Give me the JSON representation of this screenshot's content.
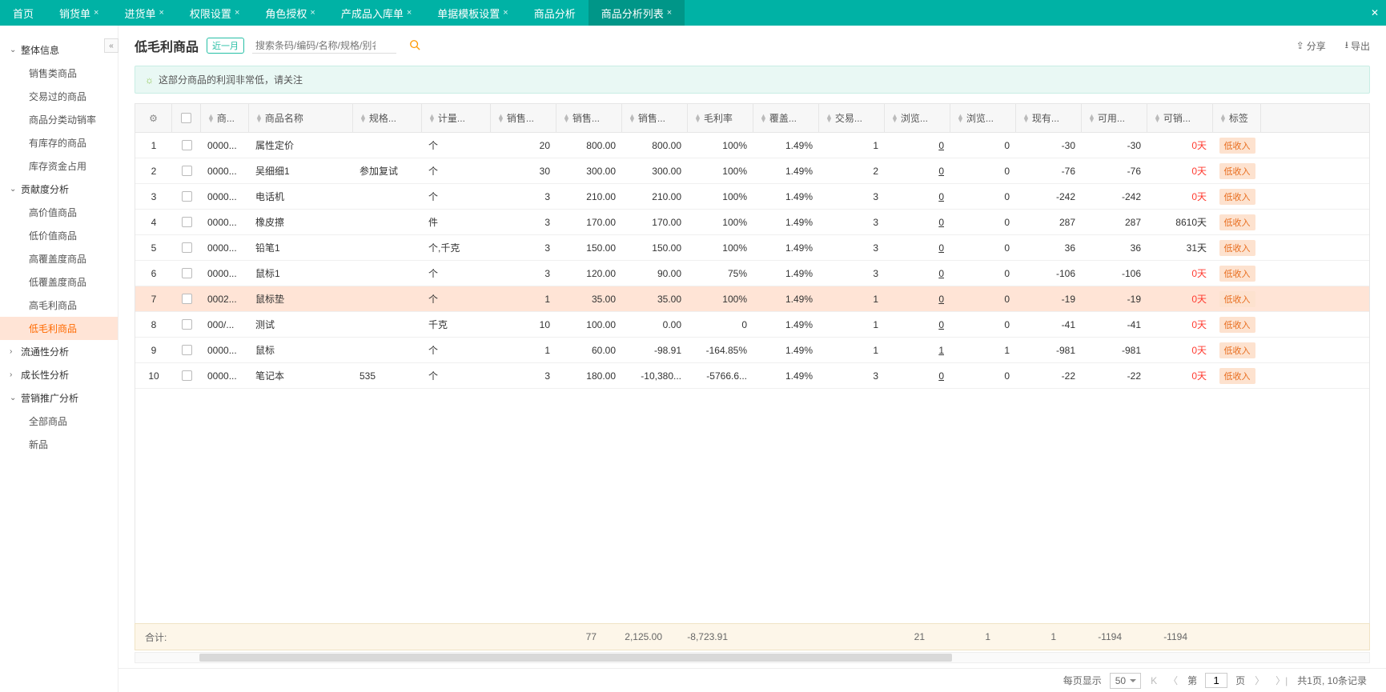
{
  "colors": {
    "brand": "#00b2a5",
    "brandDark": "#009688",
    "highlightRow": "#ffe4d6",
    "noticeBg": "#e9f8f4",
    "summaryBg": "#fdf6e9",
    "danger": "#ff3b30",
    "tagBg": "#fde2cf",
    "tagText": "#e86d1e"
  },
  "tabs": {
    "items": [
      {
        "label": "首页",
        "closable": false
      },
      {
        "label": "销货单",
        "closable": true
      },
      {
        "label": "进货单",
        "closable": true
      },
      {
        "label": "权限设置",
        "closable": true
      },
      {
        "label": "角色授权",
        "closable": true
      },
      {
        "label": "产成品入库单",
        "closable": true
      },
      {
        "label": "单据模板设置",
        "closable": true
      },
      {
        "label": "商品分析",
        "closable": false
      },
      {
        "label": "商品分析列表",
        "closable": true
      }
    ],
    "activeIndex": 8
  },
  "sidebar": {
    "groups": [
      {
        "label": "整体信息",
        "expanded": true,
        "items": [
          "销售类商品",
          "交易过的商品",
          "商品分类动销率",
          "有库存的商品",
          "库存资金占用"
        ]
      },
      {
        "label": "贡献度分析",
        "expanded": true,
        "items": [
          "高价值商品",
          "低价值商品",
          "高覆盖度商品",
          "低覆盖度商品",
          "高毛利商品",
          "低毛利商品"
        ],
        "activeItem": 5
      },
      {
        "label": "流通性分析",
        "expanded": false,
        "items": []
      },
      {
        "label": "成长性分析",
        "expanded": false,
        "items": []
      },
      {
        "label": "营销推广分析",
        "expanded": true,
        "items": [
          "全部商品",
          "新品"
        ]
      }
    ]
  },
  "header": {
    "title": "低毛利商品",
    "period": "近一月",
    "searchPlaceholder": "搜索条码/编码/名称/规格/别名",
    "share": "分享",
    "export": "导出"
  },
  "notice": {
    "text": "这部分商品的利润非常低，请关注"
  },
  "table": {
    "columns": [
      "商...",
      "商品名称",
      "规格...",
      "计量...",
      "销售...",
      "销售...",
      "销售...",
      "毛利率",
      "覆盖...",
      "交易...",
      "浏览...",
      "浏览...",
      "现有...",
      "可用...",
      "可销...",
      "标签"
    ],
    "rows": [
      {
        "n": 1,
        "code": "0000...",
        "name": "属性定价",
        "spec": "",
        "unit": "个",
        "q": "20",
        "amt1": "800.00",
        "amt2": "800.00",
        "gm": "100%",
        "cov": "1.49%",
        "tx": "1",
        "v1": "0",
        "v2": "0",
        "stk": "-30",
        "avl": "-30",
        "days": "0天",
        "daysRed": true,
        "tag": "低收入"
      },
      {
        "n": 2,
        "code": "0000...",
        "name": "吴细细1",
        "spec": "参加复试",
        "unit": "个",
        "q": "30",
        "amt1": "300.00",
        "amt2": "300.00",
        "gm": "100%",
        "cov": "1.49%",
        "tx": "2",
        "v1": "0",
        "v2": "0",
        "stk": "-76",
        "avl": "-76",
        "days": "0天",
        "daysRed": true,
        "tag": "低收入"
      },
      {
        "n": 3,
        "code": "0000...",
        "name": "电话机",
        "spec": "",
        "unit": "个",
        "q": "3",
        "amt1": "210.00",
        "amt2": "210.00",
        "gm": "100%",
        "cov": "1.49%",
        "tx": "3",
        "v1": "0",
        "v2": "0",
        "stk": "-242",
        "avl": "-242",
        "days": "0天",
        "daysRed": true,
        "tag": "低收入"
      },
      {
        "n": 4,
        "code": "0000...",
        "name": "橡皮擦",
        "spec": "",
        "unit": "件",
        "q": "3",
        "amt1": "170.00",
        "amt2": "170.00",
        "gm": "100%",
        "cov": "1.49%",
        "tx": "3",
        "v1": "0",
        "v2": "0",
        "stk": "287",
        "avl": "287",
        "days": "8610天",
        "daysRed": false,
        "tag": "低收入"
      },
      {
        "n": 5,
        "code": "0000...",
        "name": "铅笔1",
        "spec": "",
        "unit": "个,千克",
        "q": "3",
        "amt1": "150.00",
        "amt2": "150.00",
        "gm": "100%",
        "cov": "1.49%",
        "tx": "3",
        "v1": "0",
        "v2": "0",
        "stk": "36",
        "avl": "36",
        "days": "31天",
        "daysRed": false,
        "tag": "低收入"
      },
      {
        "n": 6,
        "code": "0000...",
        "name": "鼠标1",
        "spec": "",
        "unit": "个",
        "q": "3",
        "amt1": "120.00",
        "amt2": "90.00",
        "gm": "75%",
        "cov": "1.49%",
        "tx": "3",
        "v1": "0",
        "v2": "0",
        "stk": "-106",
        "avl": "-106",
        "days": "0天",
        "daysRed": true,
        "tag": "低收入"
      },
      {
        "n": 7,
        "code": "0002...",
        "name": "鼠标垫",
        "spec": "",
        "unit": "个",
        "q": "1",
        "amt1": "35.00",
        "amt2": "35.00",
        "gm": "100%",
        "cov": "1.49%",
        "tx": "1",
        "v1": "0",
        "v2": "0",
        "stk": "-19",
        "avl": "-19",
        "days": "0天",
        "daysRed": true,
        "tag": "低收入",
        "highlight": true
      },
      {
        "n": 8,
        "code": "000/...",
        "name": "测试",
        "spec": "",
        "unit": "千克",
        "q": "10",
        "amt1": "100.00",
        "amt2": "0.00",
        "gm": "0",
        "cov": "1.49%",
        "tx": "1",
        "v1": "0",
        "v2": "0",
        "stk": "-41",
        "avl": "-41",
        "days": "0天",
        "daysRed": true,
        "tag": "低收入"
      },
      {
        "n": 9,
        "code": "0000...",
        "name": "鼠标",
        "spec": "",
        "unit": "个",
        "q": "1",
        "amt1": "60.00",
        "amt2": "-98.91",
        "gm": "-164.85%",
        "cov": "1.49%",
        "tx": "1",
        "v1": "1",
        "v2": "1",
        "stk": "-981",
        "avl": "-981",
        "days": "0天",
        "daysRed": true,
        "tag": "低收入"
      },
      {
        "n": 10,
        "code": "0000...",
        "name": "笔记本",
        "spec": "535",
        "unit": "个",
        "q": "3",
        "amt1": "180.00",
        "amt2": "-10,380...",
        "gm": "-5766.6...",
        "cov": "1.49%",
        "tx": "3",
        "v1": "0",
        "v2": "0",
        "stk": "-22",
        "avl": "-22",
        "days": "0天",
        "daysRed": true,
        "tag": "低收入"
      }
    ],
    "summary": {
      "label": "合计:",
      "q": "77",
      "amt1": "2,125.00",
      "amt2": "-8,723.91",
      "tx": "21",
      "v1": "1",
      "v2": "1",
      "stk": "-1194",
      "avl": "-1194"
    }
  },
  "pager": {
    "perPageLabel": "每页显示",
    "perPage": "50",
    "prefix": "第",
    "page": "1",
    "suffix": "页",
    "totalText": "共1页, 10条记录"
  }
}
